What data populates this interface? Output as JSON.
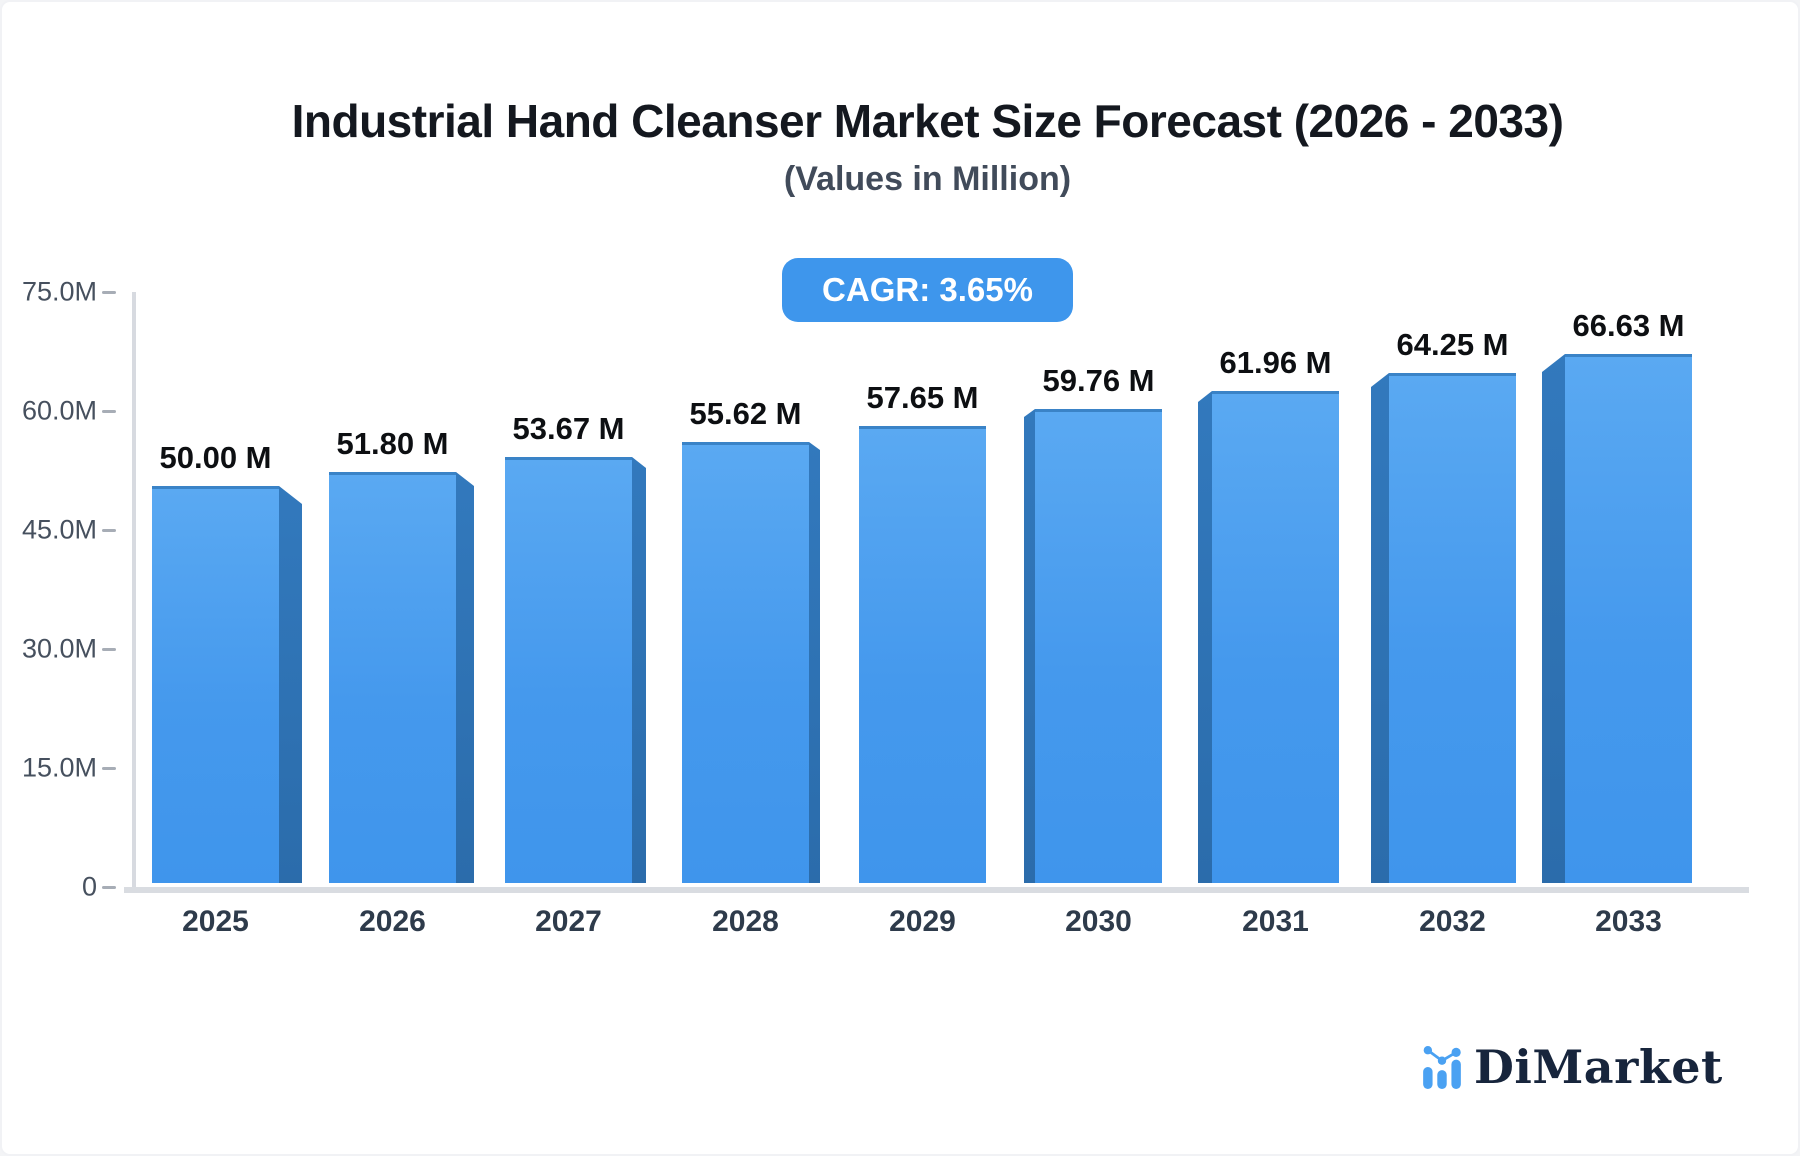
{
  "header": {
    "title": "Industrial Hand Cleanser Market Size Forecast (2026 - 2033)",
    "subtitle": "(Values in Million)",
    "cagr": "CAGR: 3.65%"
  },
  "chart_data": {
    "type": "bar",
    "title": "Industrial Hand Cleanser Market Size Forecast (2026 - 2033)",
    "subtitle": "(Values in Million)",
    "cagr_percent": 3.65,
    "categories": [
      "2025",
      "2026",
      "2027",
      "2028",
      "2029",
      "2030",
      "2031",
      "2032",
      "2033"
    ],
    "values": [
      50.0,
      51.8,
      53.67,
      55.62,
      57.65,
      59.76,
      61.96,
      64.25,
      66.63
    ],
    "value_labels": [
      "50.00 M",
      "51.80 M",
      "53.67 M",
      "55.62 M",
      "57.65 M",
      "59.76 M",
      "61.96 M",
      "64.25 M",
      "66.63 M"
    ],
    "y_tick_labels": [
      "75.0M",
      "60.0M",
      "45.0M",
      "30.0M",
      "15.0M",
      "0"
    ],
    "ylim": [
      0,
      75
    ],
    "xlabel": "",
    "ylabel": "",
    "grid": false,
    "legend": false,
    "style": "3d-perspective-bars",
    "colors": {
      "bar_front": "#4599ed",
      "bar_front_light": "#5aa9f2",
      "bar_side": "#2e73b6",
      "bar_top_edge": "#3a83c7",
      "badge_bg": "#3e96ec",
      "badge_text": "#ffffff",
      "axis": "#d7dae0",
      "tick": "#a7adb6",
      "title_text": "#14181f",
      "subtitle_text": "#414b5a",
      "value_label_text": "#0d0f12",
      "axis_label_text": "#46505e"
    }
  },
  "branding": {
    "name": "DiMarket",
    "icon": "bar-line-chart-icon",
    "icon_color": "#4aa1f2",
    "text_color": "#17253c"
  }
}
